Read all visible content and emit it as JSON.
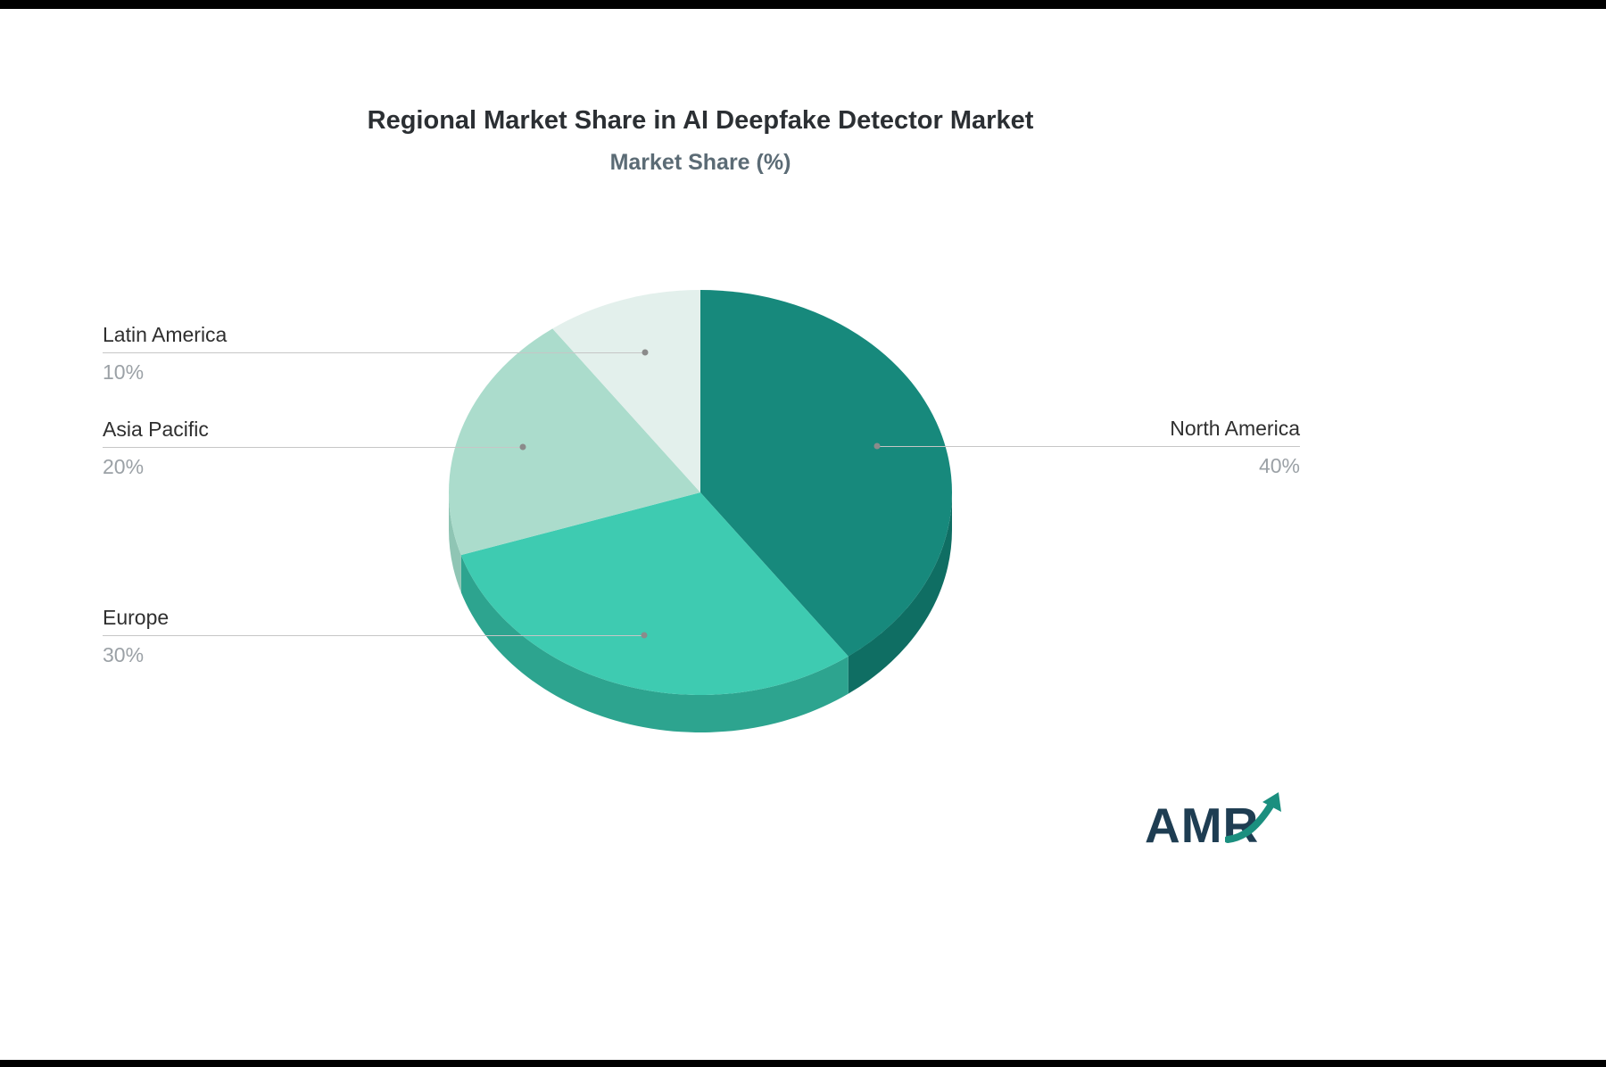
{
  "title": "Regional Market Share in AI Deepfake Detector Market",
  "subtitle": "Market Share (%)",
  "logo": {
    "text": "AMR",
    "color": "#1e3d52",
    "arrow_color": "#1b8f7f"
  },
  "chart_data": {
    "type": "pie",
    "title": "Regional Market Share in AI Deepfake Detector Market",
    "subtitle": "Market Share (%)",
    "unit": "%",
    "effect": "3d",
    "start_angle_deg": -90,
    "direction": "clockwise",
    "legend": "none",
    "categories": [
      "North America",
      "Europe",
      "Asia Pacific",
      "Latin America"
    ],
    "values": [
      40,
      30,
      20,
      10
    ],
    "series": [
      {
        "label": "North America",
        "value": 40,
        "value_label": "40%",
        "color": "#17897c",
        "rim_color": "#0f6e63",
        "label_side": "right"
      },
      {
        "label": "Europe",
        "value": 30,
        "value_label": "30%",
        "color": "#3ecbb1",
        "rim_color": "#2da48f",
        "label_side": "left"
      },
      {
        "label": "Asia Pacific",
        "value": 20,
        "value_label": "20%",
        "color": "#abdccc",
        "rim_color": "#8fc5b4",
        "label_side": "left"
      },
      {
        "label": "Latin America",
        "value": 10,
        "value_label": "10%",
        "color": "#e3f0ec",
        "rim_color": "#c4ded6",
        "label_side": "left"
      }
    ],
    "label_style": {
      "name_color": "#2f2f2f",
      "value_color": "#9ba1a6",
      "line_color": "#c6c6c6",
      "dot_color": "#8b8b8b"
    }
  }
}
